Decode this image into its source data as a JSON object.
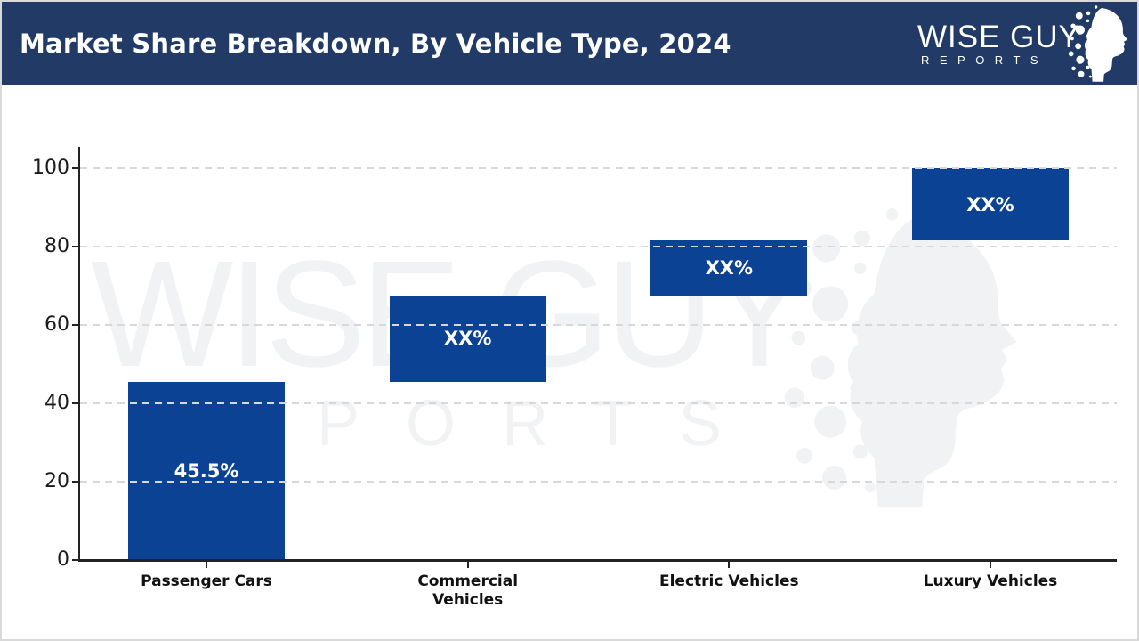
{
  "header": {
    "title": "Market Share Breakdown, By Vehicle Type, 2024",
    "bg_color": "#213a66",
    "logo": {
      "line1": "WISE GUY",
      "line2": "REPORTS"
    }
  },
  "watermark": {
    "line1": "WISE GUY",
    "line2": "REPORTS",
    "color": "#f1f2f4"
  },
  "chart_data": {
    "type": "bar",
    "variant": "waterfall",
    "title": "Market Share Breakdown, By Vehicle Type, 2024",
    "categories": [
      "Passenger Cars",
      "Commercial\nVehicles",
      "Electric Vehicles",
      "Luxury Vehicles"
    ],
    "segments": [
      {
        "category": "Passenger Cars",
        "start": 0,
        "end": 45.5,
        "label": "45.5%"
      },
      {
        "category": "Commercial\nVehicles",
        "start": 45.5,
        "end": 67.5,
        "label": "XX%"
      },
      {
        "category": "Electric Vehicles",
        "start": 67.5,
        "end": 81.5,
        "label": "XX%"
      },
      {
        "category": "Luxury Vehicles",
        "start": 81.5,
        "end": 100,
        "label": "XX%"
      }
    ],
    "yticks": [
      0,
      20,
      40,
      60,
      80,
      100
    ],
    "ylim": [
      0,
      105
    ],
    "xlabel": "",
    "ylabel": "",
    "grid": "horizontal-dashed",
    "legend": "none",
    "bar_color": "#0b4294",
    "bar_label_color": "#ffffff",
    "grid_color": "#d8d8d8",
    "axis_color": "#222222",
    "tick_label_color": "#1a1a1a"
  }
}
